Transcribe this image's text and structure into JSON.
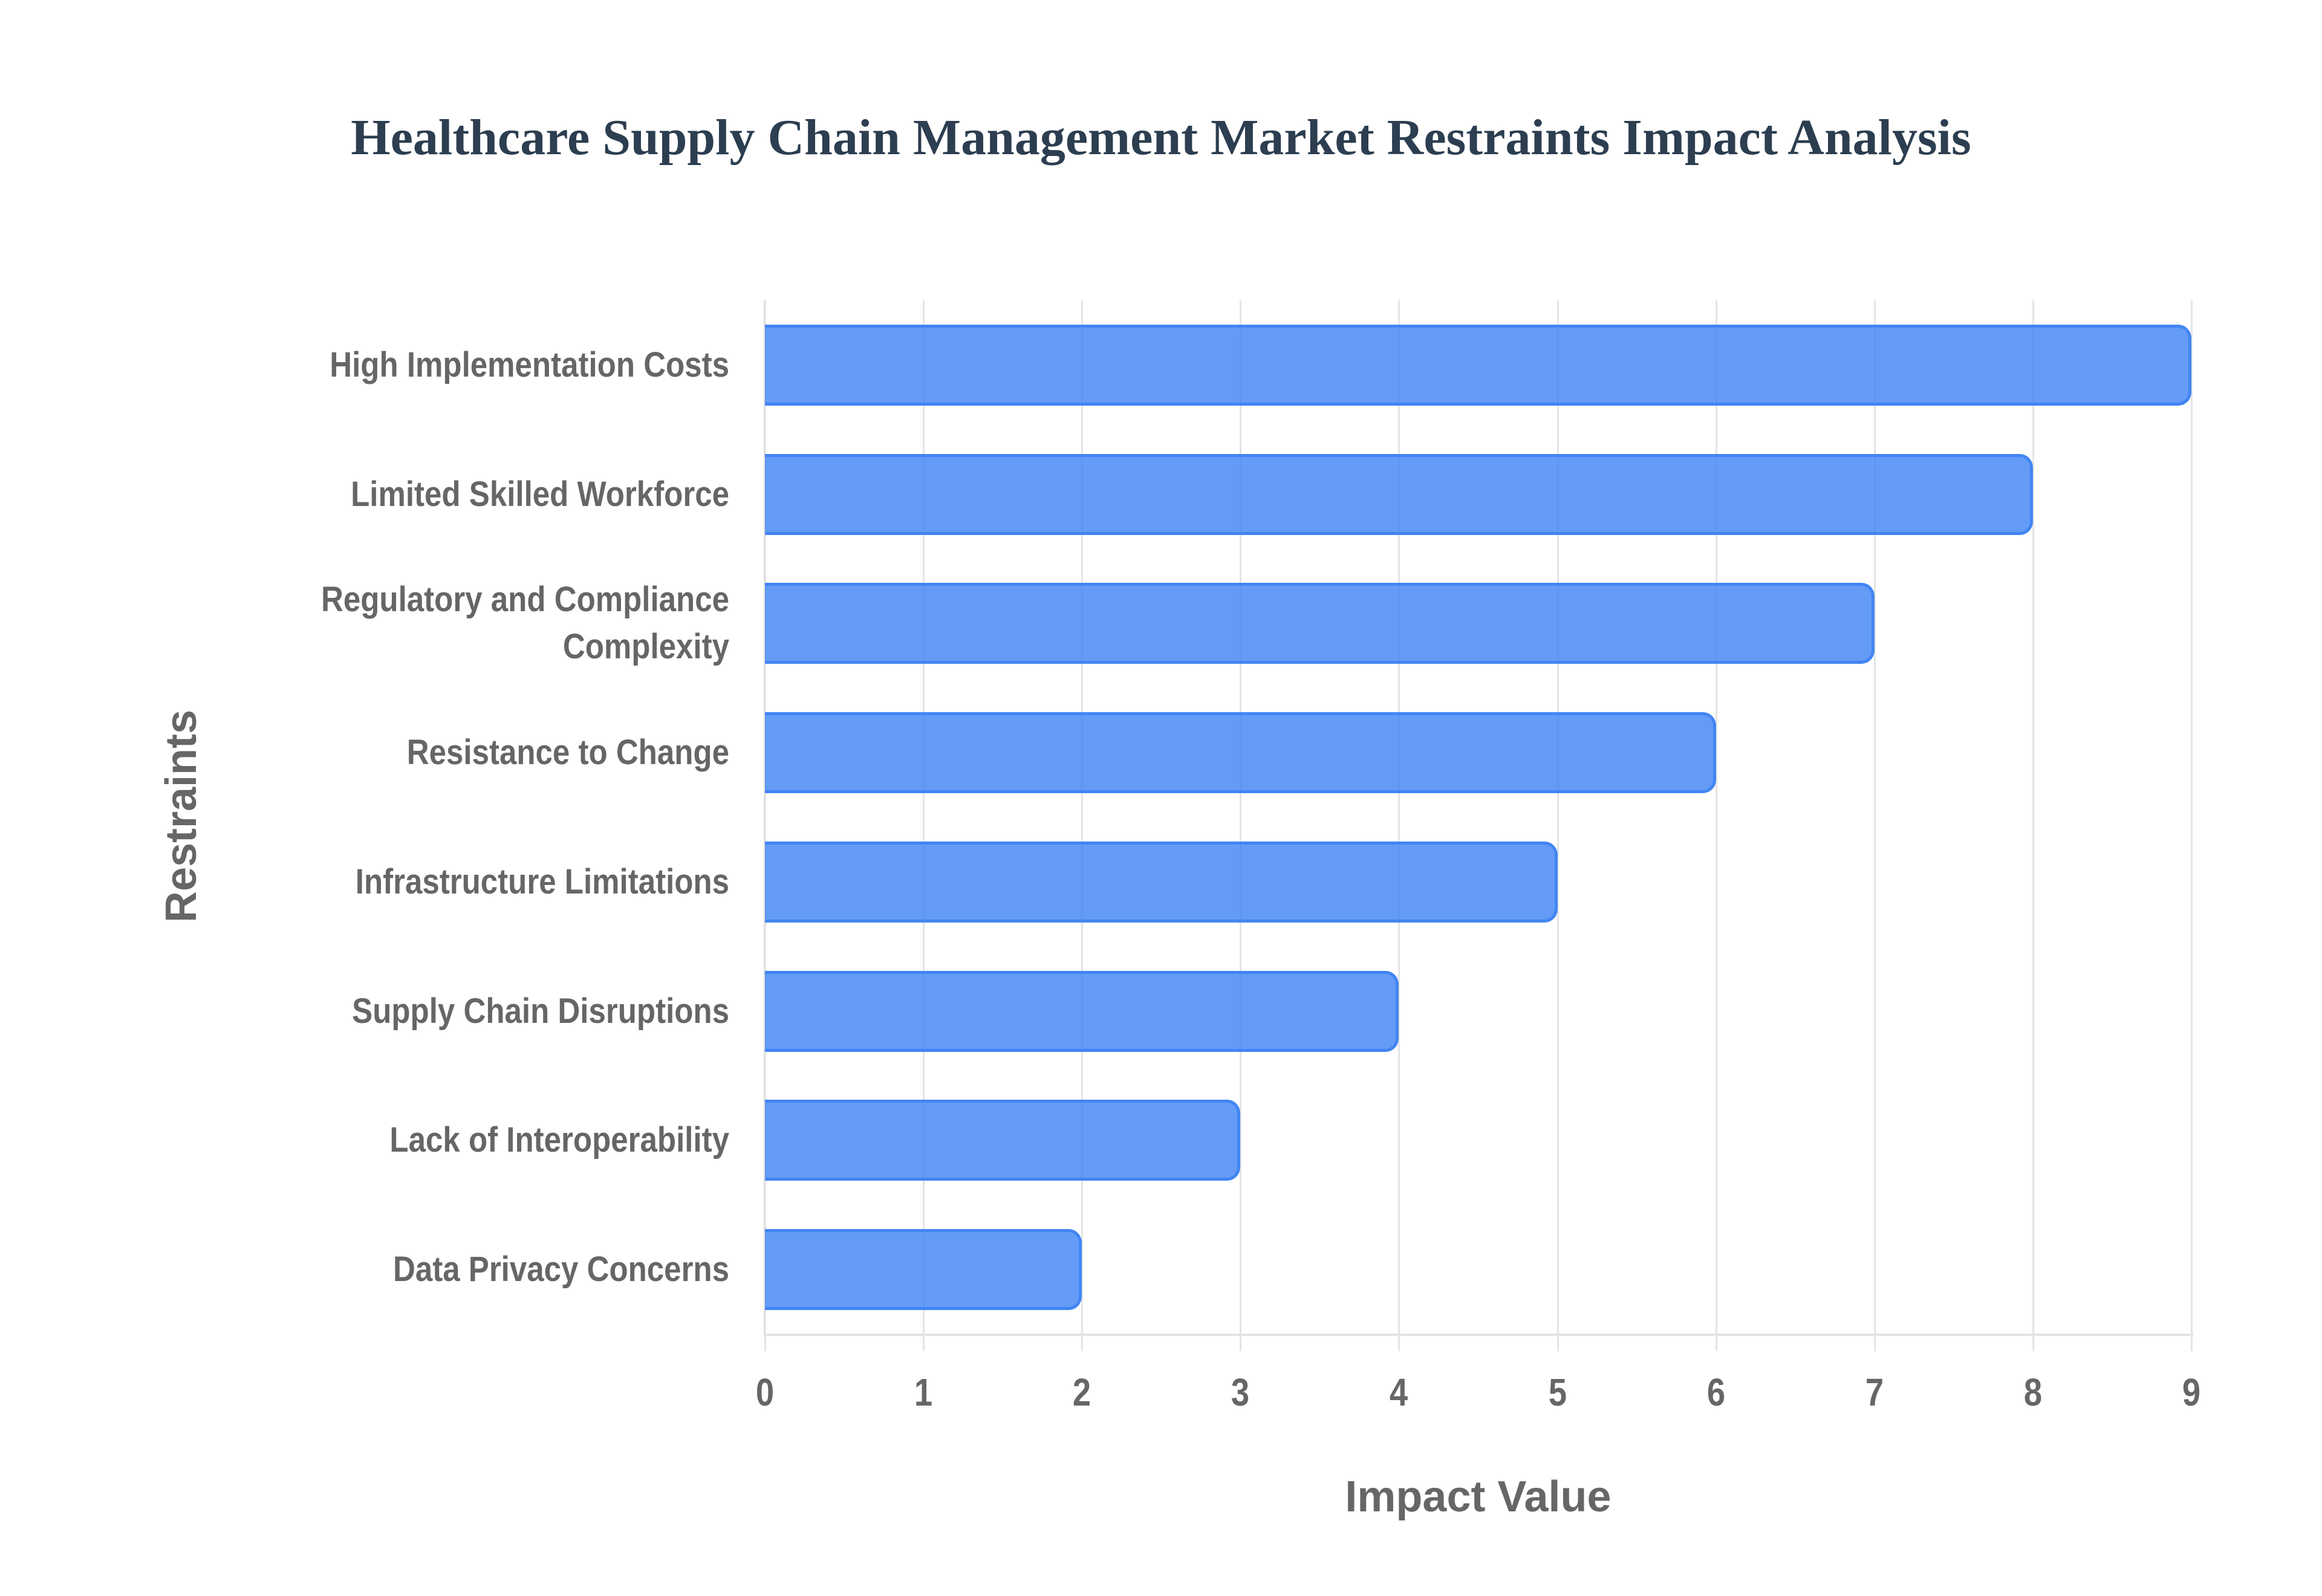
{
  "title": "Healthcare Supply Chain Management Market Restraints Impact Analysis",
  "colors": {
    "bar_fill": "#6199f4",
    "bar_border": "#4285f4",
    "title": "#2c3e50",
    "axis_text": "#666666",
    "grid": "#e4e4e4"
  },
  "chart_data": {
    "type": "bar",
    "orientation": "horizontal",
    "title": "Healthcare Supply Chain Management Market Restraints Impact Analysis",
    "xlabel": "Impact Value",
    "ylabel": "Restraints",
    "categories": [
      "High Implementation Costs",
      "Limited Skilled Workforce",
      "Regulatory and Compliance Complexity",
      "Resistance to Change",
      "Infrastructure Limitations",
      "Supply Chain Disruptions",
      "Lack of Interoperability",
      "Data Privacy Concerns"
    ],
    "values": [
      9,
      8,
      7,
      6,
      5,
      4,
      3,
      2
    ],
    "xlim": [
      0,
      9
    ],
    "xticks": [
      "0",
      "1",
      "2",
      "3",
      "4",
      "5",
      "6",
      "7",
      "8",
      "9"
    ],
    "grid": true,
    "legend": null
  },
  "labels": [
    {
      "line1": "High Implementation Costs",
      "line2": ""
    },
    {
      "line1": "Limited Skilled Workforce",
      "line2": ""
    },
    {
      "line1": "Regulatory and Compliance",
      "line2": "Complexity"
    },
    {
      "line1": "Resistance to Change",
      "line2": ""
    },
    {
      "line1": "Infrastructure Limitations",
      "line2": ""
    },
    {
      "line1": "Supply Chain Disruptions",
      "line2": ""
    },
    {
      "line1": "Lack of Interoperability",
      "line2": ""
    },
    {
      "line1": "Data Privacy Concerns",
      "line2": ""
    }
  ]
}
